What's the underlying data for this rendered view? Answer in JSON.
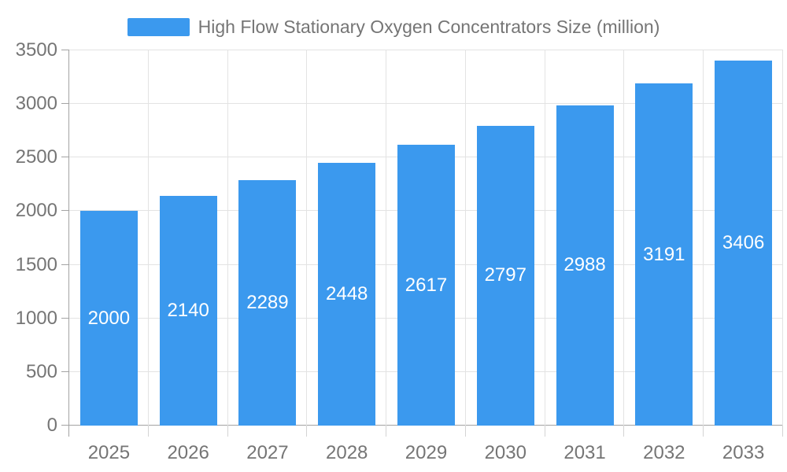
{
  "chart_data": {
    "type": "bar",
    "title": "",
    "legend": "High Flow Stationary Oxygen Concentrators Size (million)",
    "legend_position": "top-center",
    "categories": [
      "2025",
      "2026",
      "2027",
      "2028",
      "2029",
      "2030",
      "2031",
      "2032",
      "2033"
    ],
    "values": [
      2000,
      2140,
      2289,
      2448,
      2617,
      2797,
      2988,
      3191,
      3406
    ],
    "xlabel": "",
    "ylabel": "",
    "ylim": [
      0,
      3500
    ],
    "ytick_step": 500,
    "ytick_labels": [
      "0",
      "500",
      "1000",
      "1500",
      "2000",
      "2500",
      "3000",
      "3500"
    ],
    "grid": true,
    "value_labels": "inside-center",
    "colors": {
      "bar": "#3b99ee",
      "grid_line": "#e3e3e3",
      "axis_line": "#a3a3a3",
      "category_tick": "#d4d4d4",
      "tick_text": "#757575",
      "value_text": "#ffffff",
      "background": "#ffffff"
    }
  }
}
